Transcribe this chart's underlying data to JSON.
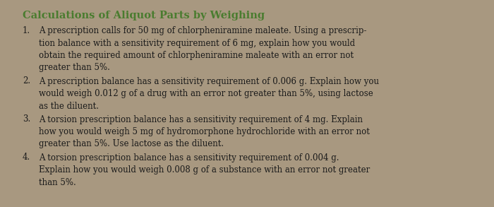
{
  "title": "Calculations of Aliquot Parts by Weighing",
  "title_color": "#4a7c2f",
  "background_color": "#a89880",
  "text_color": "#1a1a1a",
  "font_size": 8.5,
  "title_font_size": 10.5,
  "items": [
    {
      "number": "1.",
      "lines": [
        "A prescription calls for 50 mg of chlorpheniramine maleate. Using a prescrip-",
        "tion balance with a sensitivity requirement of 6 mg, explain how you would",
        "obtain the required amount of chlorpheniramine maleate with an error not",
        "greater than 5%."
      ]
    },
    {
      "number": "2.",
      "lines": [
        "A prescription balance has a sensitivity requirement of 0.006 g. Explain how you",
        "would weigh 0.012 g of a drug with an error not greater than 5%, using lactose",
        "as the diluent."
      ]
    },
    {
      "number": "3.",
      "lines": [
        "A torsion prescription balance has a sensitivity requirement of 4 mg. Explain",
        "how you would weigh 5 mg of hydromorphone hydrochloride with an error not",
        "greater than 5%. Use lactose as the diluent."
      ]
    },
    {
      "number": "4.",
      "lines": [
        "A torsion prescription balance has a sensitivity requirement of 0.004 g.",
        "Explain how you would weigh 0.008 g of a substance with an error not greater",
        "than 5%."
      ]
    }
  ]
}
